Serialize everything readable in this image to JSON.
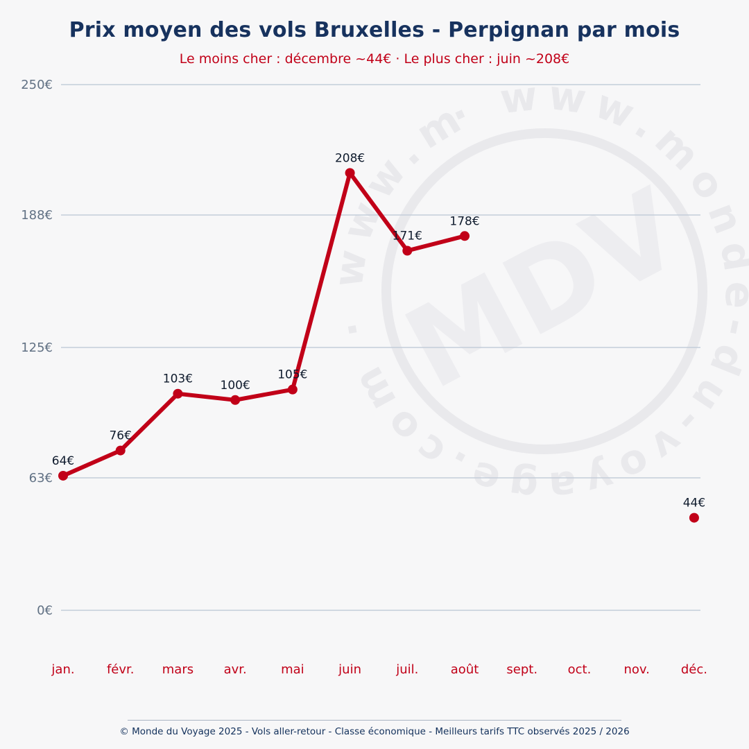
{
  "title": "Prix moyen des vols Bruxelles - Perpignan par mois",
  "subtitle": "Le moins cher : décembre ~44€ · Le plus cher : juin ~208€",
  "footer_text": "© Monde du Voyage 2025 - Vols aller-retour - Classe économique - Meilleurs tarifs TTC observés 2025 / 2026",
  "watermark": {
    "ring": "· www.monde-du-voyage.com · www.monde-du-voyage.com",
    "initials": "MDV"
  },
  "colors": {
    "background": "#f7f7f8",
    "navy": "#17325e",
    "accent_red": "#c10018",
    "grid": "#c4cdd9",
    "axis_text": "#617184",
    "label_text": "#0f1b2d",
    "watermark": "#e9e9ec"
  },
  "chart_data": {
    "type": "line",
    "title": "Prix moyen des vols Bruxelles - Perpignan par mois",
    "subtitle": "Le moins cher : décembre ~44€ · Le plus cher : juin ~208€",
    "xlabel": "",
    "ylabel": "",
    "ylim": [
      0,
      250
    ],
    "grid": true,
    "legend": false,
    "categories": [
      "jan.",
      "févr.",
      "mars",
      "avr.",
      "mai",
      "juin",
      "juil.",
      "août",
      "sept.",
      "oct.",
      "nov.",
      "déc."
    ],
    "values": [
      64,
      76,
      103,
      100,
      105,
      208,
      171,
      178,
      null,
      null,
      null,
      44
    ],
    "point_labels": [
      "64€",
      "76€",
      "103€",
      "100€",
      "105€",
      "208€",
      "171€",
      "178€",
      null,
      null,
      null,
      "44€"
    ],
    "y_ticks": [
      {
        "value": 250,
        "label": "250€"
      },
      {
        "value": 188,
        "label": "188€"
      },
      {
        "value": 125,
        "label": "125€"
      },
      {
        "value": 63,
        "label": "63€"
      },
      {
        "value": 0,
        "label": "0€"
      }
    ]
  }
}
